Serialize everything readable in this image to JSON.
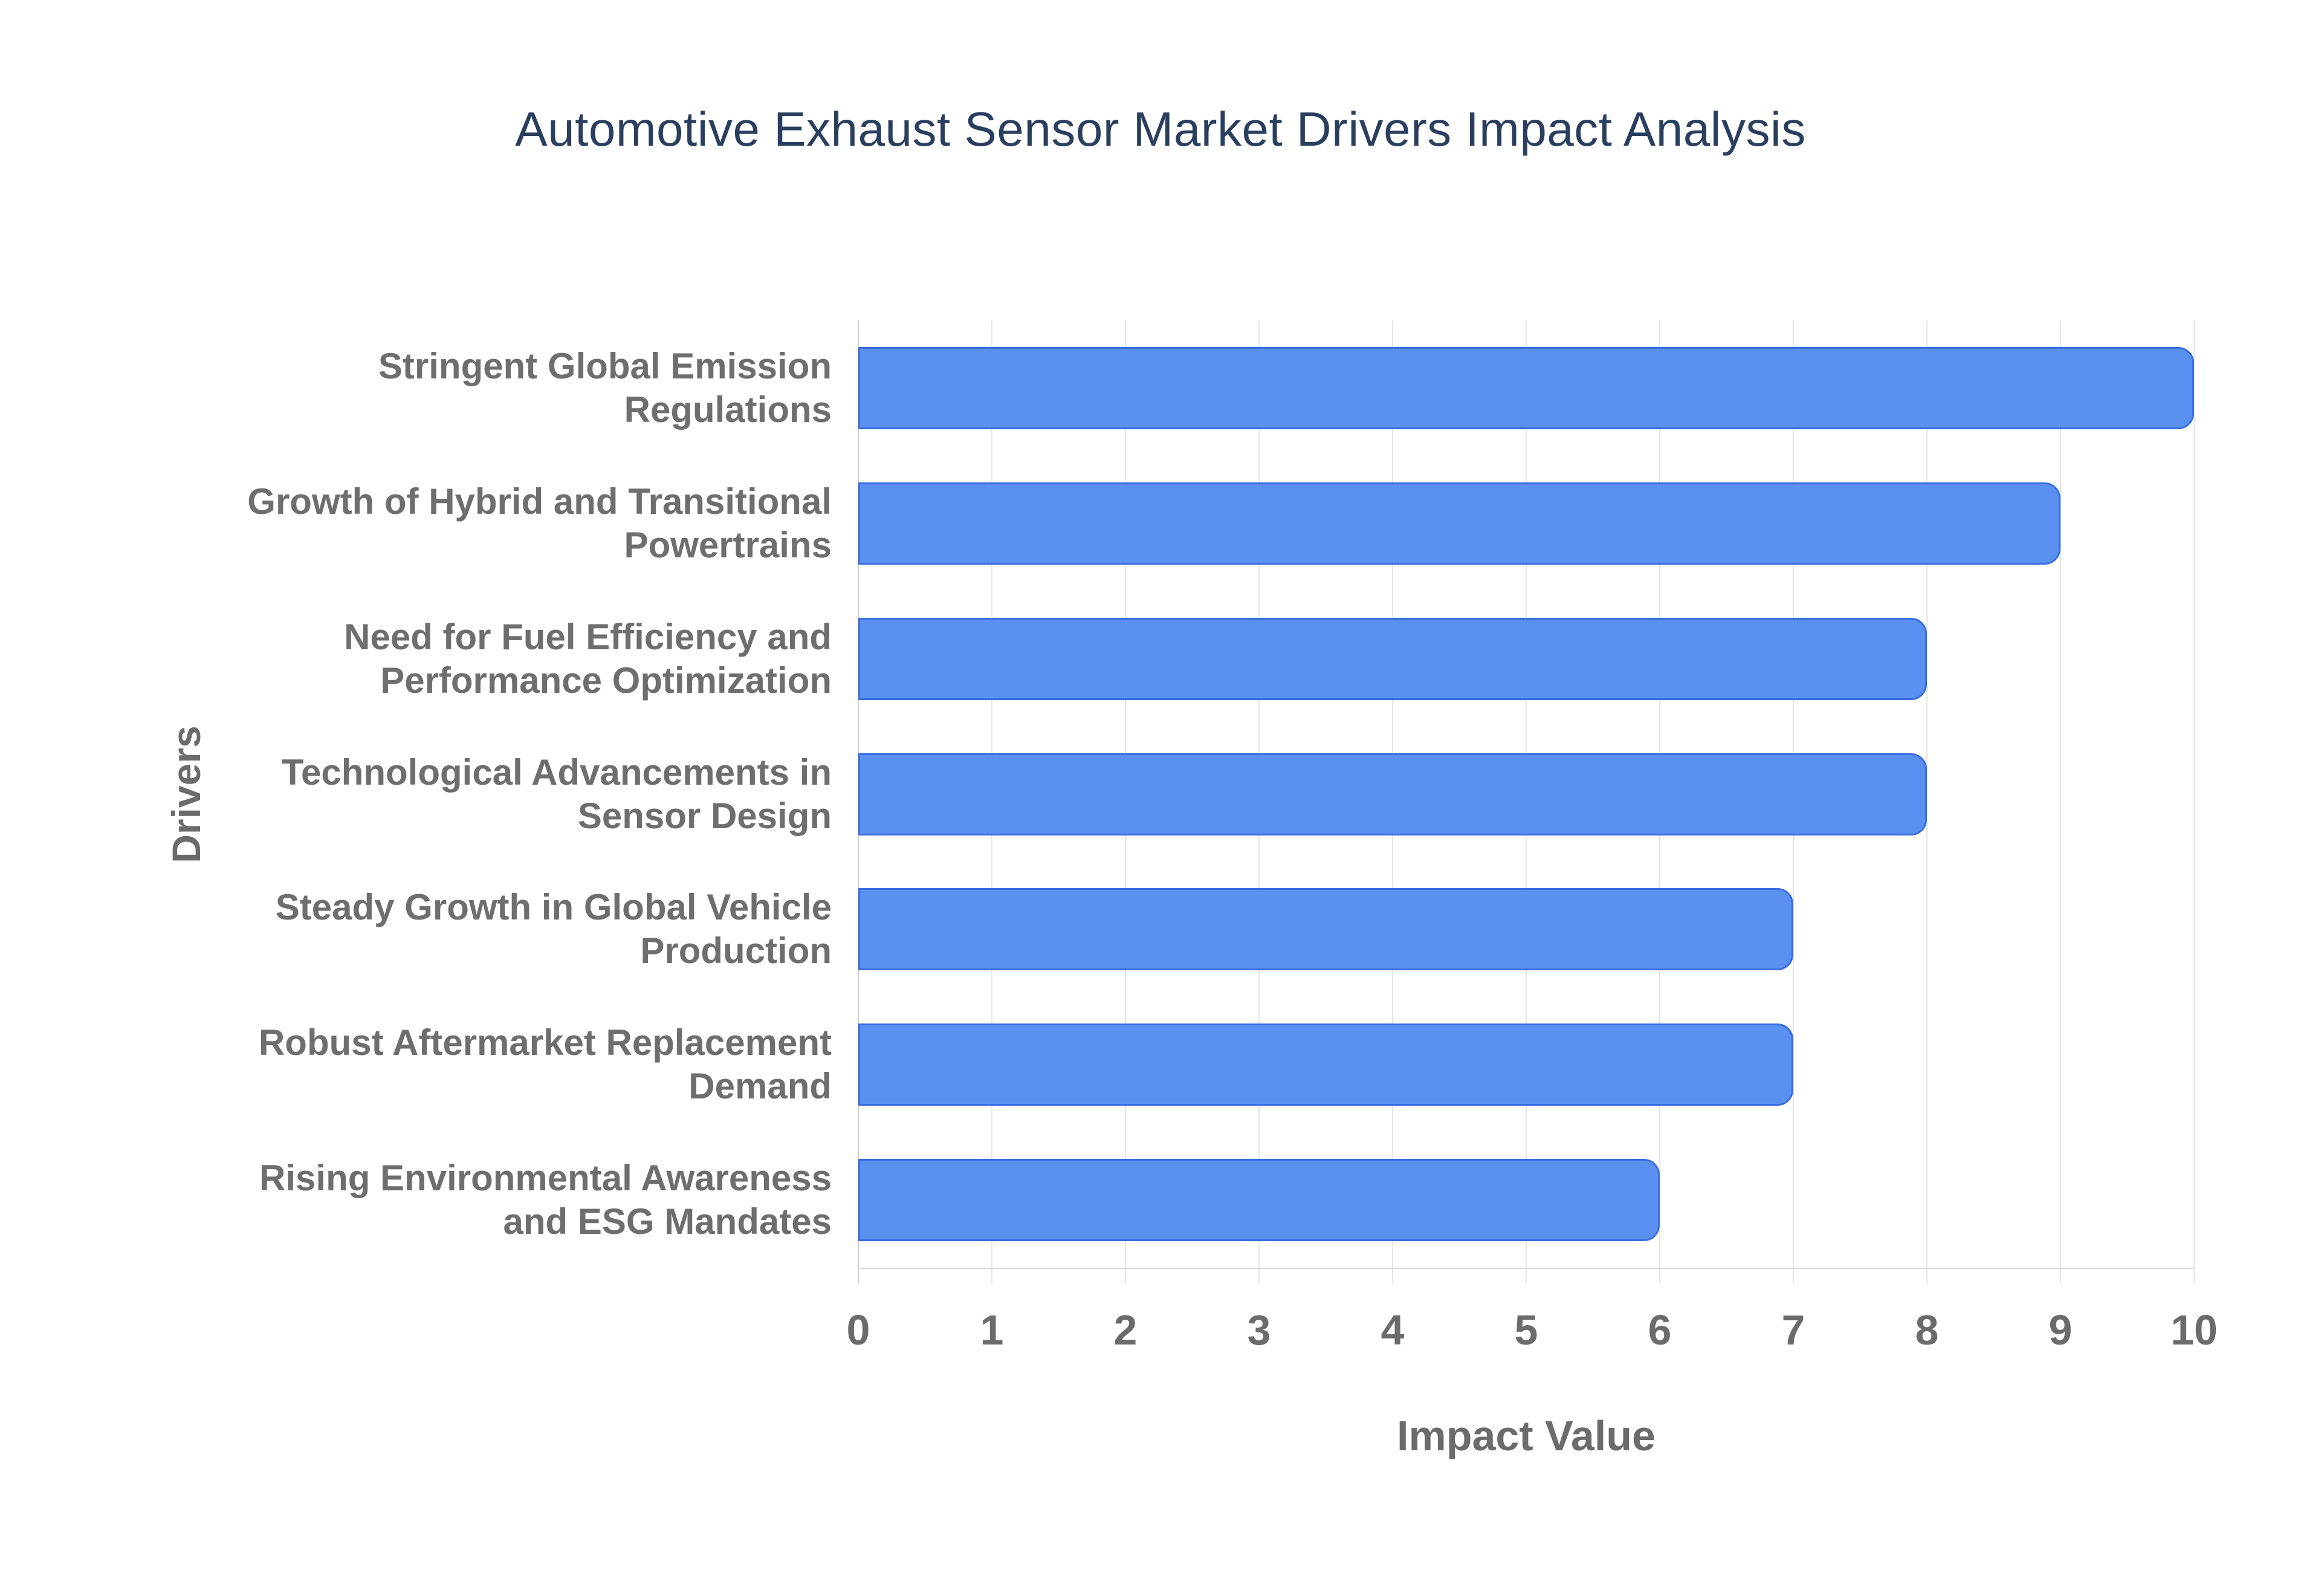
{
  "chart_data": {
    "type": "bar",
    "orientation": "horizontal",
    "title": "Automotive Exhaust Sensor Market Drivers Impact Analysis",
    "categories": [
      "Stringent Global Emission Regulations",
      "Growth of Hybrid and Transitional Powertrains",
      "Need for Fuel Efficiency and Performance Optimization",
      "Technological Advancements in Sensor Design",
      "Steady Growth in Global Vehicle Production",
      "Robust Aftermarket Replacement Demand",
      "Rising Environmental Awareness and ESG Mandates"
    ],
    "values": [
      10,
      9,
      8,
      8,
      7,
      7,
      6
    ],
    "xlabel": "Impact Value",
    "ylabel": "Drivers",
    "xlim": [
      0,
      10
    ],
    "xticks": [
      0,
      1,
      2,
      3,
      4,
      5,
      6,
      7,
      8,
      9,
      10
    ],
    "grid": true,
    "legend_position": "none",
    "colors": {
      "background": "#ffffff",
      "bar_fill": "#5a90f0",
      "bar_border": "#3a6dde",
      "grid_line": "#e5e5e5",
      "zero_axis_line": "#cfcfcf",
      "baseline": "#d9d9d9",
      "tick_label": "#6b6b6b",
      "category_label": "#6e6e6e",
      "axis_title": "#6b6b6b",
      "title": "#2a3f5f"
    }
  }
}
